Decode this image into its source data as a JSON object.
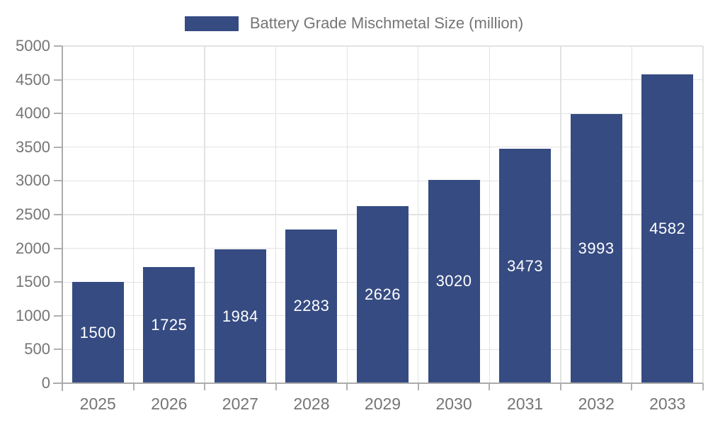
{
  "chart_data": {
    "type": "bar",
    "title": "Battery Grade Mischmetal Size (million)",
    "categories": [
      "2025",
      "2026",
      "2027",
      "2028",
      "2029",
      "2030",
      "2031",
      "2032",
      "2033"
    ],
    "values": [
      1500,
      1725,
      1984,
      2283,
      2626,
      3020,
      3473,
      3993,
      4582
    ],
    "xlabel": "",
    "ylabel": "",
    "ylim": [
      0,
      5000
    ],
    "yticks": [
      0,
      500,
      1000,
      1500,
      2000,
      2500,
      3000,
      3500,
      4000,
      4500,
      5000
    ],
    "grid": true,
    "legend_position": "top-center",
    "value_label_position": "inside-center"
  },
  "colors": {
    "bar": "#364B82",
    "grid": "#e2e2e2",
    "axis": "#ababab",
    "tick": "#b0b0b0",
    "text": "#757575",
    "value_label": "#ffffff",
    "background": "#ffffff"
  }
}
